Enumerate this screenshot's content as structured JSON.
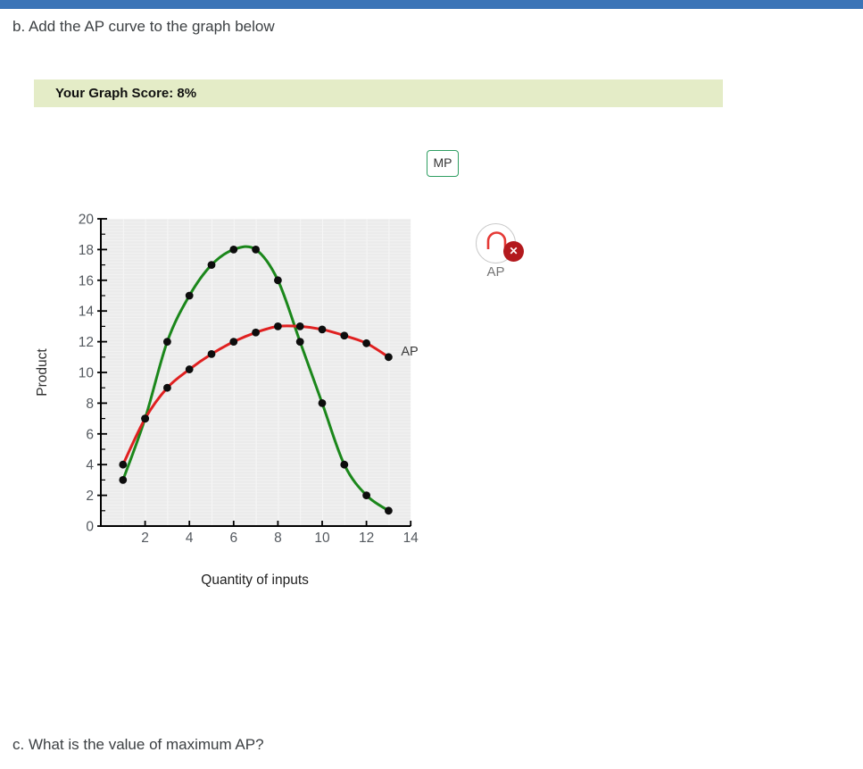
{
  "page": {
    "heading_b": "b. Add the AP curve to the graph below",
    "question_c": "c. What is the value of maximum AP?"
  },
  "score_banner": {
    "text": "Your Graph Score: 8%",
    "bg_color": "#e4ecc7"
  },
  "mp_chip": {
    "label": "MP",
    "border_color": "#2f9e62"
  },
  "palette": {
    "item_label": "AP",
    "remove_badge": "✕",
    "arc_color": "#e53935",
    "badge_color": "#b3191d"
  },
  "colors": {
    "top_bar": "#3b74b7",
    "plot_bg": "#ebebeb",
    "mp_curve": "#1b871b",
    "ap_curve": "#e02020",
    "marker": "#0d0d0d"
  },
  "chart_data": {
    "type": "line",
    "title": "",
    "xlabel": "Quantity of inputs",
    "ylabel": "Product",
    "xlim": [
      0,
      14
    ],
    "ylim": [
      0,
      20
    ],
    "x_ticks": [
      2,
      4,
      6,
      8,
      10,
      12,
      14
    ],
    "y_ticks": [
      0,
      2,
      4,
      6,
      8,
      10,
      12,
      14,
      16,
      18,
      20
    ],
    "y_minor_step": 1,
    "grid": true,
    "legend_position": "none",
    "series": [
      {
        "name": "MP",
        "color": "#1b871b",
        "x": [
          1,
          2,
          3,
          4,
          5,
          6,
          7,
          8,
          9,
          10,
          11,
          12,
          13
        ],
        "y": [
          3,
          7,
          12,
          15,
          17,
          18,
          18,
          16,
          12,
          8,
          4,
          2,
          1
        ]
      },
      {
        "name": "AP",
        "color": "#e02020",
        "x": [
          1,
          2,
          3,
          4,
          5,
          6,
          7,
          8,
          9,
          10,
          11,
          12,
          13
        ],
        "y": [
          4,
          7,
          9,
          10.2,
          11.2,
          12,
          12.6,
          13,
          13,
          12.8,
          12.4,
          11.9,
          11
        ]
      }
    ],
    "annotation": {
      "text": "AP",
      "x": 13,
      "y": 11
    }
  }
}
